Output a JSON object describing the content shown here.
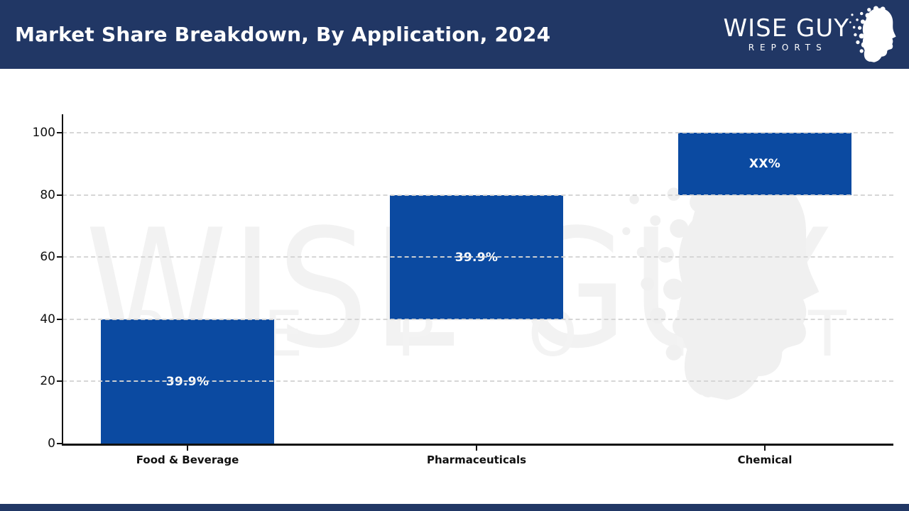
{
  "header": {
    "title": "Market Share Breakdown, By Application, 2024",
    "logo": {
      "line1": "WISE GUY",
      "line2": "REPORTS"
    }
  },
  "watermark": {
    "line1": "WISE GUY",
    "line2": "R E P O R T S"
  },
  "colors": {
    "header_navy": "#213765",
    "bar_blue": "#0b4aa1",
    "gridline_gray": "#d4d4d4",
    "watermark_gray": "#f0f0f0"
  },
  "chart_data": {
    "type": "bar",
    "subtype": "floating-segment (waterfall style)",
    "title": "Market Share Breakdown, By Application, 2024",
    "categories": [
      "Food & Beverage",
      "Pharmaceuticals",
      "Chemical"
    ],
    "segments": [
      {
        "category": "Food & Beverage",
        "from": 0,
        "to": 39.9,
        "label": "39.9%"
      },
      {
        "category": "Pharmaceuticals",
        "from": 39.9,
        "to": 79.8,
        "label": "39.9%"
      },
      {
        "category": "Chemical",
        "from": 79.8,
        "to": 100,
        "label": "XX%"
      }
    ],
    "xlabel": "",
    "ylabel": "",
    "ylim": [
      0,
      100
    ],
    "yticks": [
      0,
      20,
      40,
      60,
      80,
      100
    ],
    "grid": "horizontal dashed, drawn over bars",
    "legend": "none",
    "bar_color": "#0b4aa1"
  }
}
